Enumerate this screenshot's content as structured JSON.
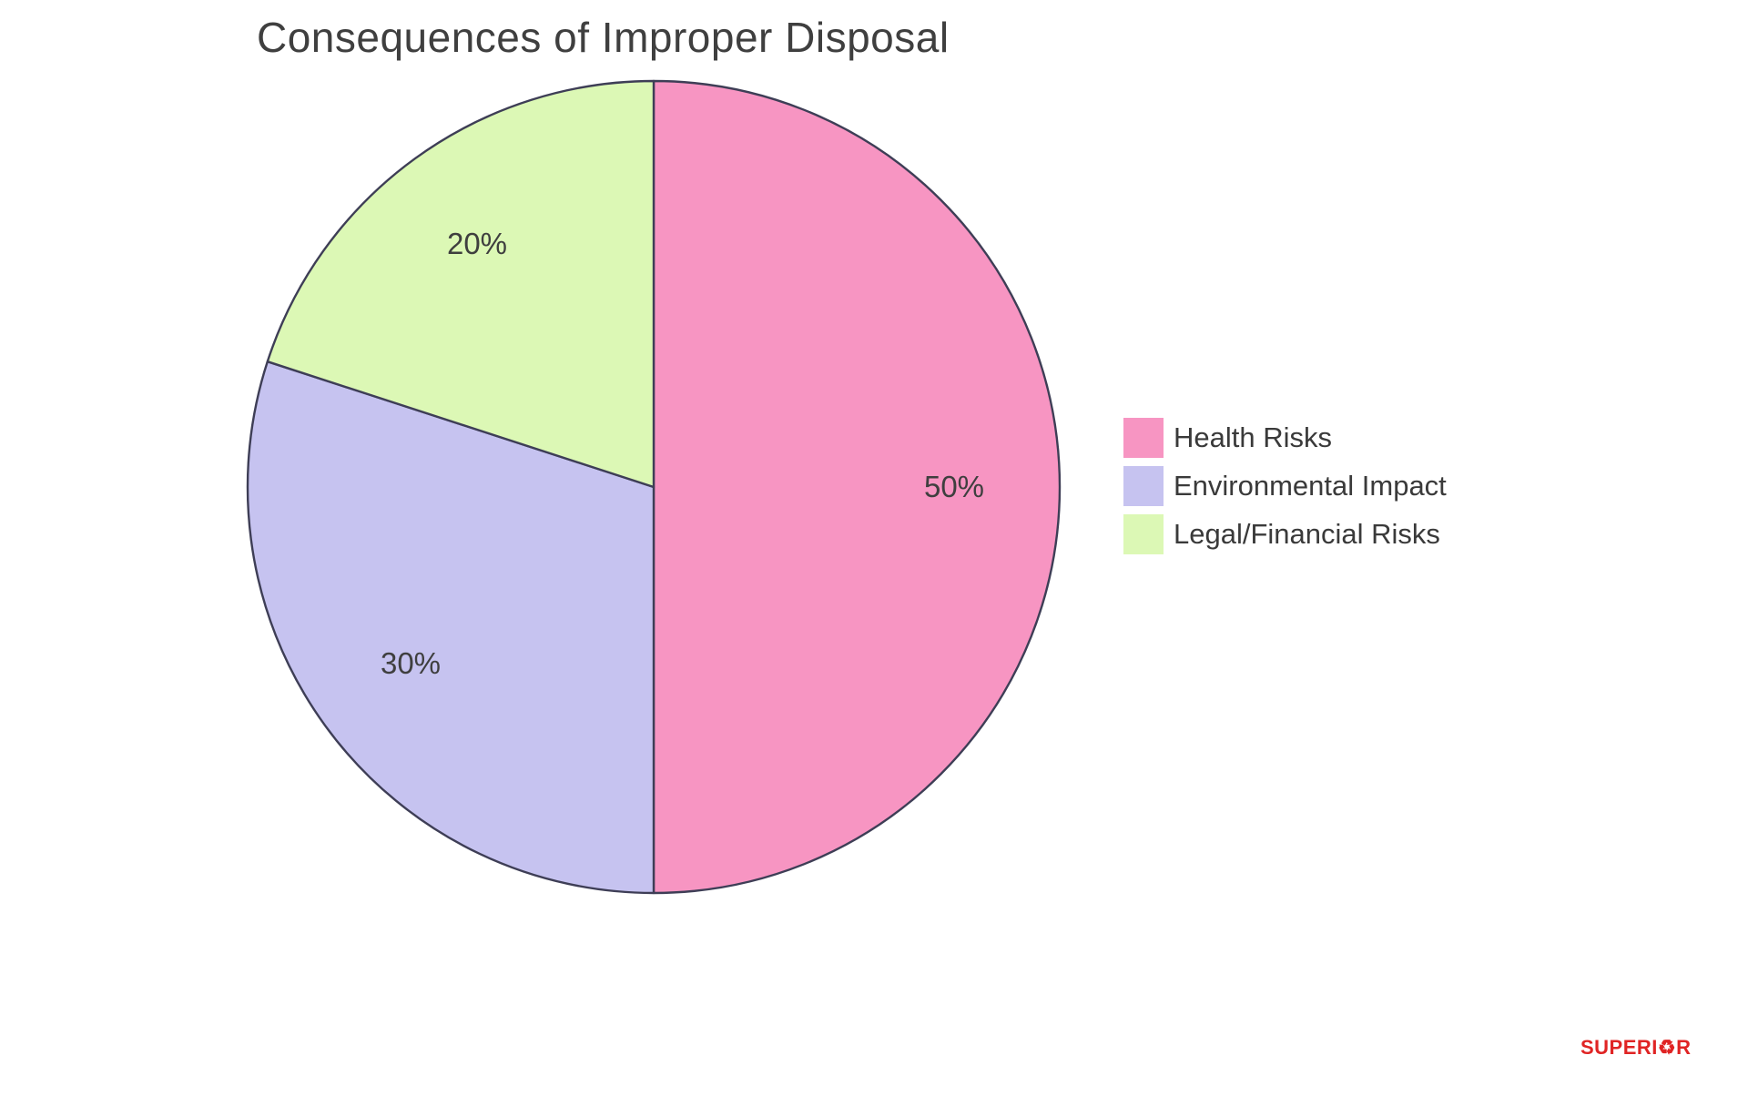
{
  "chart_data": {
    "type": "pie",
    "title": "Consequences of Improper Disposal",
    "labels": [
      "Health Risks",
      "Environmental Impact",
      "Legal/Financial Risks"
    ],
    "values": [
      50,
      30,
      20
    ],
    "unit": "%",
    "value_labels": [
      "50%",
      "30%",
      "20%"
    ],
    "colors": [
      "#F795C2",
      "#C6C3F0",
      "#DCF8B5"
    ],
    "slice_border_color": "#3E3E56",
    "slice_border_width": 2.4,
    "label_color": "#3F3F3F",
    "start_angle": "top",
    "direction": "clockwise",
    "legend_position": "right",
    "background": "#FFFFFF"
  },
  "watermark": {
    "text": "SUPERI♻R",
    "color": "#E02424"
  }
}
